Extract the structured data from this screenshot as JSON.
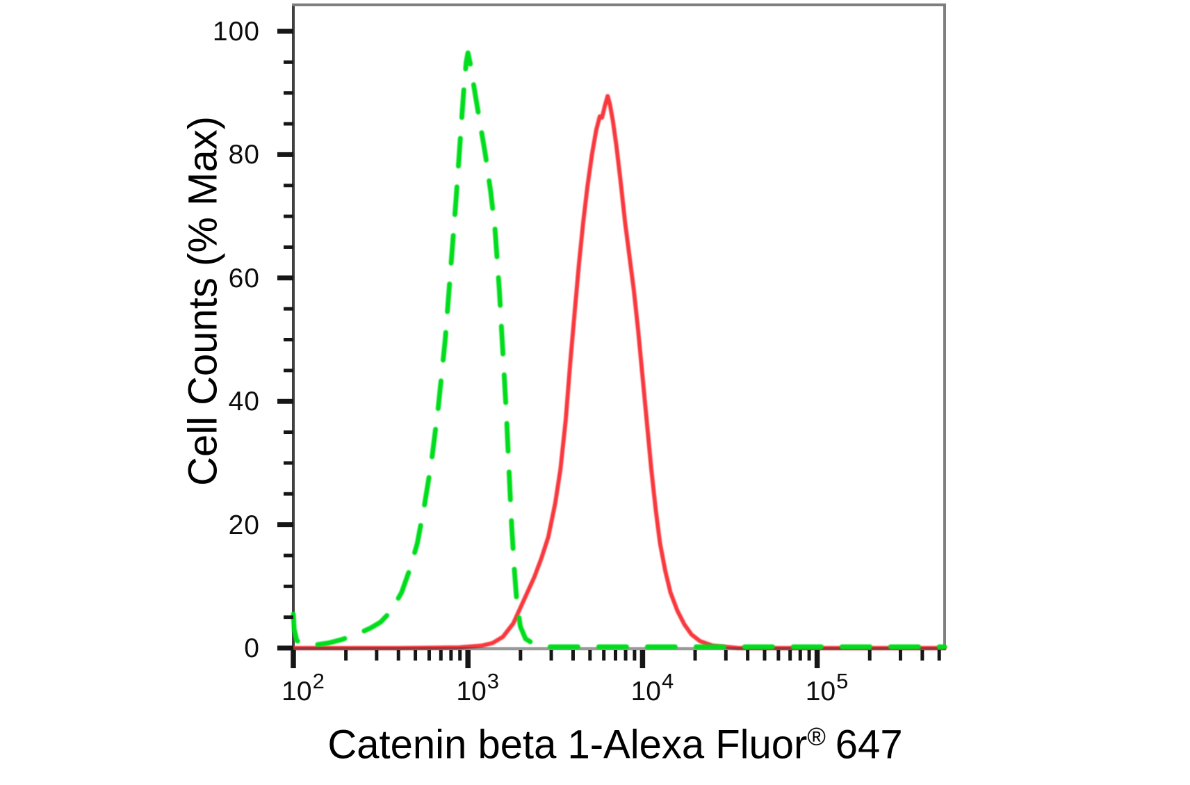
{
  "chart_data": {
    "type": "line",
    "title": "",
    "ylabel": "Cell Counts (% Max)",
    "xlabel_parts": {
      "main": "Catenin beta 1-Alexa Fluor",
      "registered_symbol": "®",
      "suffix": "647"
    },
    "x_scale": "log10",
    "x_range_log10": [
      2.0,
      5.73
    ],
    "ylim": [
      0,
      100
    ],
    "grid": false,
    "legend": "none",
    "y_ticks": [
      {
        "label": "0",
        "value": 0
      },
      {
        "label": "20",
        "value": 20
      },
      {
        "label": "40",
        "value": 40
      },
      {
        "label": "60",
        "value": 60
      },
      {
        "label": "80",
        "value": 80
      },
      {
        "label": "100",
        "value": 100
      }
    ],
    "y_minor_step": 5,
    "x_major_ticks": [
      {
        "base": "10",
        "exponent": "2",
        "value": 100
      },
      {
        "base": "10",
        "exponent": "3",
        "value": 1000
      },
      {
        "base": "10",
        "exponent": "4",
        "value": 10000
      },
      {
        "base": "10",
        "exponent": "5",
        "value": 100000
      }
    ],
    "x_minor_tick_multipliers": [
      2,
      3,
      4,
      5,
      6,
      7,
      8,
      9
    ],
    "series": [
      {
        "name": "green-dashed-histogram",
        "line_style": "dashed",
        "color": "#06dd1d",
        "peak": {
          "x_value": 1000,
          "y_pct": 96.5
        },
        "points_log10x_pct": [
          [
            2.0,
            5.5
          ],
          [
            2.005,
            3.0
          ],
          [
            2.02,
            1.2
          ],
          [
            2.06,
            0.6
          ],
          [
            2.12,
            0.5
          ],
          [
            2.2,
            0.8
          ],
          [
            2.28,
            1.4
          ],
          [
            2.36,
            2.2
          ],
          [
            2.44,
            3.2
          ],
          [
            2.5,
            4.2
          ],
          [
            2.56,
            6.0
          ],
          [
            2.62,
            9.0
          ],
          [
            2.67,
            13
          ],
          [
            2.71,
            17
          ],
          [
            2.75,
            23
          ],
          [
            2.79,
            30
          ],
          [
            2.83,
            39
          ],
          [
            2.87,
            50
          ],
          [
            2.9,
            61
          ],
          [
            2.93,
            72
          ],
          [
            2.955,
            82
          ],
          [
            2.975,
            90
          ],
          [
            2.99,
            95
          ],
          [
            3.0,
            96.5
          ],
          [
            3.015,
            94.5
          ],
          [
            3.04,
            90
          ],
          [
            3.07,
            85
          ],
          [
            3.1,
            80
          ],
          [
            3.13,
            74
          ],
          [
            3.155,
            68
          ],
          [
            3.18,
            58
          ],
          [
            3.2,
            48
          ],
          [
            3.22,
            38
          ],
          [
            3.235,
            29
          ],
          [
            3.25,
            20
          ],
          [
            3.265,
            13
          ],
          [
            3.28,
            7.5
          ],
          [
            3.3,
            3.5
          ],
          [
            3.33,
            1.5
          ],
          [
            3.38,
            0.6
          ],
          [
            3.46,
            0.2
          ],
          [
            3.7,
            0.2
          ],
          [
            4.0,
            0.2
          ],
          [
            4.4,
            0.2
          ],
          [
            4.8,
            0.2
          ],
          [
            5.2,
            0.2
          ],
          [
            5.5,
            0.2
          ],
          [
            5.73,
            0.2
          ]
        ]
      },
      {
        "name": "red-solid-histogram",
        "line_style": "solid",
        "color": "#f8383e",
        "peak": {
          "x_value": 6300,
          "y_pct": 89.5
        },
        "points_log10x_pct": [
          [
            2.0,
            0.0
          ],
          [
            2.6,
            0.0
          ],
          [
            2.95,
            0.1
          ],
          [
            3.08,
            0.4
          ],
          [
            3.14,
            0.8
          ],
          [
            3.2,
            1.8
          ],
          [
            3.26,
            4.0
          ],
          [
            3.3,
            6.5
          ],
          [
            3.34,
            9.0
          ],
          [
            3.38,
            11.5
          ],
          [
            3.42,
            14.5
          ],
          [
            3.46,
            18
          ],
          [
            3.5,
            23.5
          ],
          [
            3.53,
            29
          ],
          [
            3.56,
            37
          ],
          [
            3.585,
            46
          ],
          [
            3.61,
            54
          ],
          [
            3.635,
            62
          ],
          [
            3.66,
            69
          ],
          [
            3.685,
            75
          ],
          [
            3.71,
            80
          ],
          [
            3.735,
            84
          ],
          [
            3.755,
            86.2
          ],
          [
            3.768,
            86.0
          ],
          [
            3.785,
            88.0
          ],
          [
            3.8,
            89.5
          ],
          [
            3.813,
            88.2
          ],
          [
            3.83,
            85.5
          ],
          [
            3.85,
            81.5
          ],
          [
            3.875,
            75.5
          ],
          [
            3.9,
            69
          ],
          [
            3.925,
            63.5
          ],
          [
            3.95,
            58
          ],
          [
            3.975,
            51.5
          ],
          [
            4.0,
            44
          ],
          [
            4.025,
            36.5
          ],
          [
            4.05,
            29
          ],
          [
            4.075,
            22.5
          ],
          [
            4.1,
            17
          ],
          [
            4.13,
            12.5
          ],
          [
            4.16,
            9
          ],
          [
            4.2,
            6
          ],
          [
            4.24,
            3.8
          ],
          [
            4.28,
            2.2
          ],
          [
            4.33,
            1.1
          ],
          [
            4.4,
            0.4
          ],
          [
            4.55,
            0.0
          ],
          [
            4.9,
            0.0
          ],
          [
            5.3,
            0.0
          ],
          [
            5.73,
            0.0
          ]
        ]
      }
    ]
  },
  "colors": {
    "background": "#ffffff",
    "frame": "#7e7e7e",
    "axis_left": "#414141",
    "baseline_overlay": "rgba(52,52,52,0.5)",
    "tick": "#161616",
    "label_text": "#0d0d0d"
  }
}
